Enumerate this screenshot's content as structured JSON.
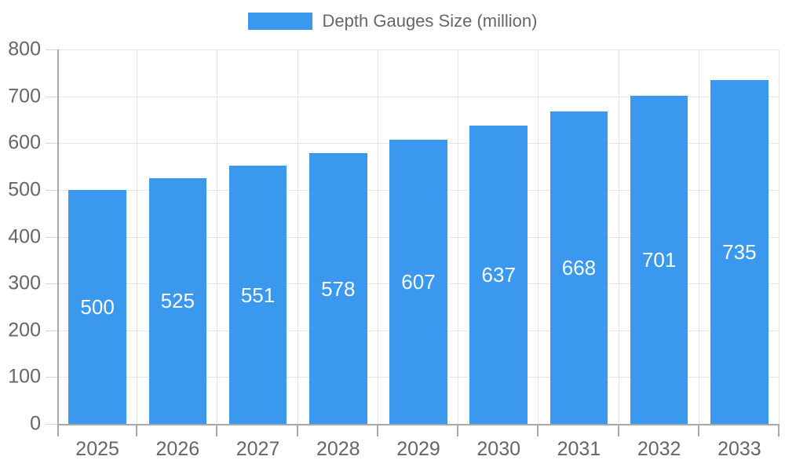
{
  "legend": {
    "label": "Depth Gauges Size (million)"
  },
  "chart_data": {
    "type": "bar",
    "title": "Depth Gauges Size (million)",
    "categories": [
      "2025",
      "2026",
      "2027",
      "2028",
      "2029",
      "2030",
      "2031",
      "2032",
      "2033"
    ],
    "values": [
      500,
      525,
      551,
      578,
      607,
      637,
      668,
      701,
      735
    ],
    "xlabel": "",
    "ylabel": "",
    "ylim": [
      0,
      800
    ],
    "ytick_step": 100,
    "yticks": [
      0,
      100,
      200,
      300,
      400,
      500,
      600,
      700,
      800
    ],
    "grid": true,
    "legend_position": "top",
    "value_labels": "inside-center",
    "colors": {
      "bar": "#3a99ee",
      "value_label": "#ffffff",
      "axis_text": "#666666",
      "grid_line": "#e5e5e5",
      "axis_line": "#a8a8a8"
    }
  }
}
